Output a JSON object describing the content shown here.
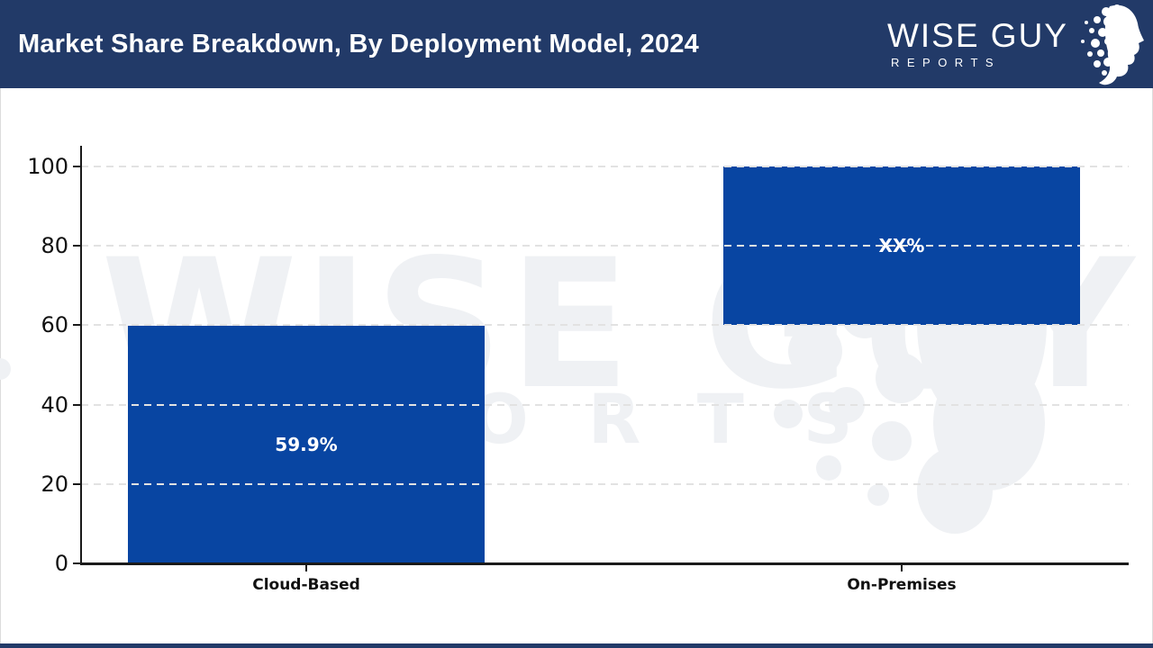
{
  "header": {
    "title": "Market Share Breakdown, By Deployment Model, 2024",
    "logo": {
      "primary": "WISE GUY",
      "secondary": "REPORTS"
    }
  },
  "watermark": {
    "line1": "WISE GUY",
    "line2": "REPORTS"
  },
  "chart_data": {
    "type": "bar",
    "title": "Market Share Breakdown, By Deployment Model, 2024",
    "categories": [
      "Cloud-Based",
      "On-Premises"
    ],
    "bars": [
      {
        "category": "Cloud-Based",
        "start": 0,
        "end": 59.9,
        "label": "59.9%"
      },
      {
        "category": "On-Premises",
        "start": 60,
        "end": 100,
        "label": "XX%"
      }
    ],
    "ylim": [
      0,
      100
    ],
    "yticks": [
      0,
      20,
      40,
      60,
      80,
      100
    ],
    "xlabel": "",
    "ylabel": "",
    "grid": "horizontal-dashed",
    "legend": "none",
    "bar_color": "#0845a2",
    "bar_label_color": "#ffffff"
  },
  "colors": {
    "header_bg": "#223a68",
    "footer_bg": "#223a68",
    "grid": "#e2e2e2",
    "axis": "#1a1a1a",
    "tick_label": "#111111",
    "watermark": "#eff1f4"
  }
}
